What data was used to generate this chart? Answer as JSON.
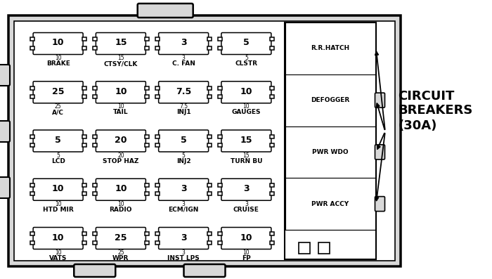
{
  "bg_color": "#ffffff",
  "box_color": "#000000",
  "fuse_rows": [
    {
      "fuses": [
        {
          "value": "10",
          "label": "10",
          "name": "BRAKE"
        },
        {
          "value": "15",
          "label": "15",
          "name": "CTSY/CLK"
        },
        {
          "value": "3",
          "label": "3",
          "name": "C. FAN"
        },
        {
          "value": "5",
          "label": "5",
          "name": "CLSTR"
        }
      ]
    },
    {
      "fuses": [
        {
          "value": "25",
          "label": "25",
          "name": "A/C"
        },
        {
          "value": "10",
          "label": "10",
          "name": "TAIL"
        },
        {
          "value": "7.5",
          "label": "7.5",
          "name": "INJ1"
        },
        {
          "value": "10",
          "label": "10",
          "name": "GAUGES"
        }
      ]
    },
    {
      "fuses": [
        {
          "value": "5",
          "label": "5",
          "name": "LCD"
        },
        {
          "value": "20",
          "label": "20",
          "name": "STOP HAZ"
        },
        {
          "value": "5",
          "label": "5",
          "name": "INJ2"
        },
        {
          "value": "15",
          "label": "15",
          "name": "TURN BU"
        }
      ]
    },
    {
      "fuses": [
        {
          "value": "10",
          "label": "10",
          "name": "HTD MIR"
        },
        {
          "value": "10",
          "label": "10",
          "name": "RADIO"
        },
        {
          "value": "3",
          "label": "3",
          "name": "ECM/IGN"
        },
        {
          "value": "3",
          "label": "3",
          "name": "CRUISE"
        }
      ]
    },
    {
      "fuses": [
        {
          "value": "10",
          "label": "10",
          "name": "VATS"
        },
        {
          "value": "25",
          "label": "25",
          "name": "WPR"
        },
        {
          "value": "3",
          "label": "3",
          "name": "INST LPS"
        },
        {
          "value": "10",
          "label": "10",
          "name": "FP"
        }
      ]
    }
  ],
  "circuit_breakers": [
    {
      "name": "R.R.HATCH"
    },
    {
      "name": "DEFOGGER"
    },
    {
      "name": "PWR WDO"
    },
    {
      "name": "PWR ACCY"
    }
  ],
  "cb_label_line1": "CIRCUIT",
  "cb_label_line2": "BREAKERS",
  "cb_label_line3": "(30A)"
}
